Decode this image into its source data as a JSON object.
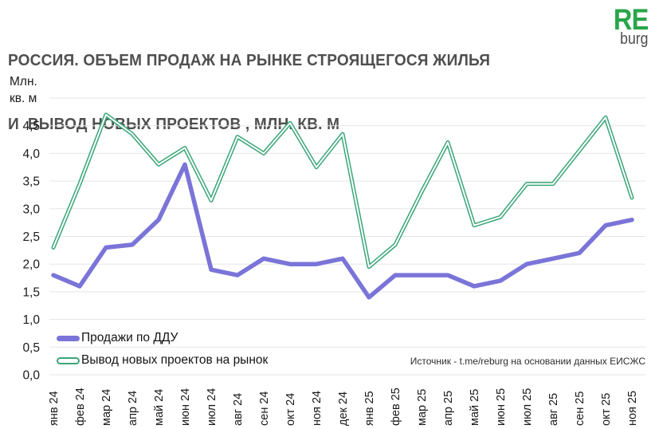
{
  "header": {
    "title_line1": "РОССИЯ. ОБЪЕМ ПРОДАЖ НА РЫНКЕ СТРОЯЩЕГОСЯ ЖИЛЬЯ",
    "title_line2": "И  ВЫВОД НОВЫХ ПРОЕКТОВ , МЛН. КВ. М",
    "logo": {
      "top": "RE",
      "bottom": "burg",
      "green": "#29a64a",
      "gray": "#4c4c4c"
    }
  },
  "y_axis_title": {
    "line1": "Млн.",
    "line2": "кв. м"
  },
  "source": "Источник - t.me/reburg на основании данных ЕИСЖС",
  "colors": {
    "title_text": "#4f4f4f",
    "sales_line": "#7b74d8",
    "launch_line": "#3aa678",
    "grid": "#e5e5e5",
    "tick_text": "#1a1a1a"
  },
  "chart_data": {
    "type": "line",
    "title": "Россия. Объем продаж на рынке строящегося жилья и вывод новых проектов, млн. кв. м",
    "ylabel": "Млн. кв. м",
    "ylim": [
      0,
      5
    ],
    "ytick_step": 0.5,
    "ymax_labeled": 4.5,
    "grid": true,
    "grid_color": "#e5e5e5",
    "tick_label_color": "#1a1a1a",
    "legend_position": "inside-bottom-left",
    "categories": [
      "янв 24",
      "фев 24",
      "мар 24",
      "апр 24",
      "май 24",
      "июн 24",
      "июл 24",
      "авг 24",
      "сен 24",
      "окт 24",
      "ноя 24",
      "дек 24",
      "янв 25",
      "фев 25",
      "мар 25",
      "апр 25",
      "май 25",
      "июн 25",
      "июл 25",
      "авг 25",
      "сен 25",
      "окт 25",
      "ноя 25"
    ],
    "series": [
      {
        "name": "Продажи по ДДУ",
        "color": "#7b74d8",
        "style": "solid",
        "values": [
          1.8,
          1.6,
          2.3,
          2.35,
          2.8,
          3.8,
          1.9,
          1.8,
          2.1,
          2.0,
          2.0,
          2.1,
          1.4,
          1.8,
          1.8,
          1.8,
          1.6,
          1.7,
          2.0,
          2.1,
          2.2,
          2.7,
          2.8
        ]
      },
      {
        "name": "Вывод новых проектов на рынок",
        "color": "#3aa678",
        "style": "outlined",
        "values": [
          2.3,
          3.45,
          4.7,
          4.35,
          3.8,
          4.1,
          3.15,
          4.3,
          4.0,
          4.55,
          3.75,
          4.35,
          1.95,
          2.35,
          3.3,
          4.2,
          2.7,
          2.85,
          3.45,
          3.45,
          4.05,
          4.65,
          3.2
        ]
      }
    ]
  }
}
